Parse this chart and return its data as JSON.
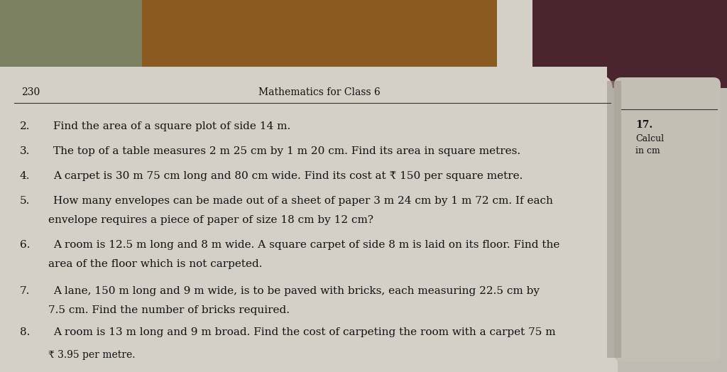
{
  "page_number": "230",
  "header_title": "Mathematics for Class 6",
  "page_bg": "#d4d0c8",
  "top_bg_left": "#6b5030",
  "top_bg_right": "#7a5535",
  "right_page_bg": "#b8b0a0",
  "right_col_bg": "#c8c0b0",
  "header_line_color": "#555555",
  "text_color": "#111111",
  "questions": [
    {
      "num": "2.",
      "line1": "Find the area of a square plot of side 14 m.",
      "line2": null
    },
    {
      "num": "3.",
      "line1": "The top of a table measures 2 m 25 cm by 1 m 20 cm. Find its area in square metres.",
      "line2": null
    },
    {
      "num": "4.",
      "line1": "A carpet is 30 m 75 cm long and 80 cm wide. Find its cost at ₹ 150 per square metre.",
      "line2": null
    },
    {
      "num": "5.",
      "line1": "How many envelopes can be made out of a sheet of paper 3 m 24 cm by 1 m 72 cm. If each",
      "line2": "envelope requires a piece of paper of size 18 cm by 12 cm?"
    },
    {
      "num": "6.",
      "line1": "A room is 12.5 m long and 8 m wide. A square carpet of side 8 m is laid on its floor. Find the",
      "line2": "area of the floor which is not carpeted."
    },
    {
      "num": "7.",
      "line1": "A lane, 150 m long and 9 m wide, is to be paved with bricks, each measuring 22.5 cm by",
      "line2": "7.5 cm. Find the number of bricks required."
    },
    {
      "num": "8.",
      "line1": "A room is 13 m long and 9 m broad. Find the cost of carpeting the room with a carpet 75 m",
      "line2": null
    }
  ],
  "bottom_partial": "₹ 3.95 per metre.",
  "side_num": "17.",
  "side_text1": "Calcul",
  "side_text2": "in cm",
  "figwidth": 10.24,
  "figheight": 5.24,
  "dpi": 100
}
